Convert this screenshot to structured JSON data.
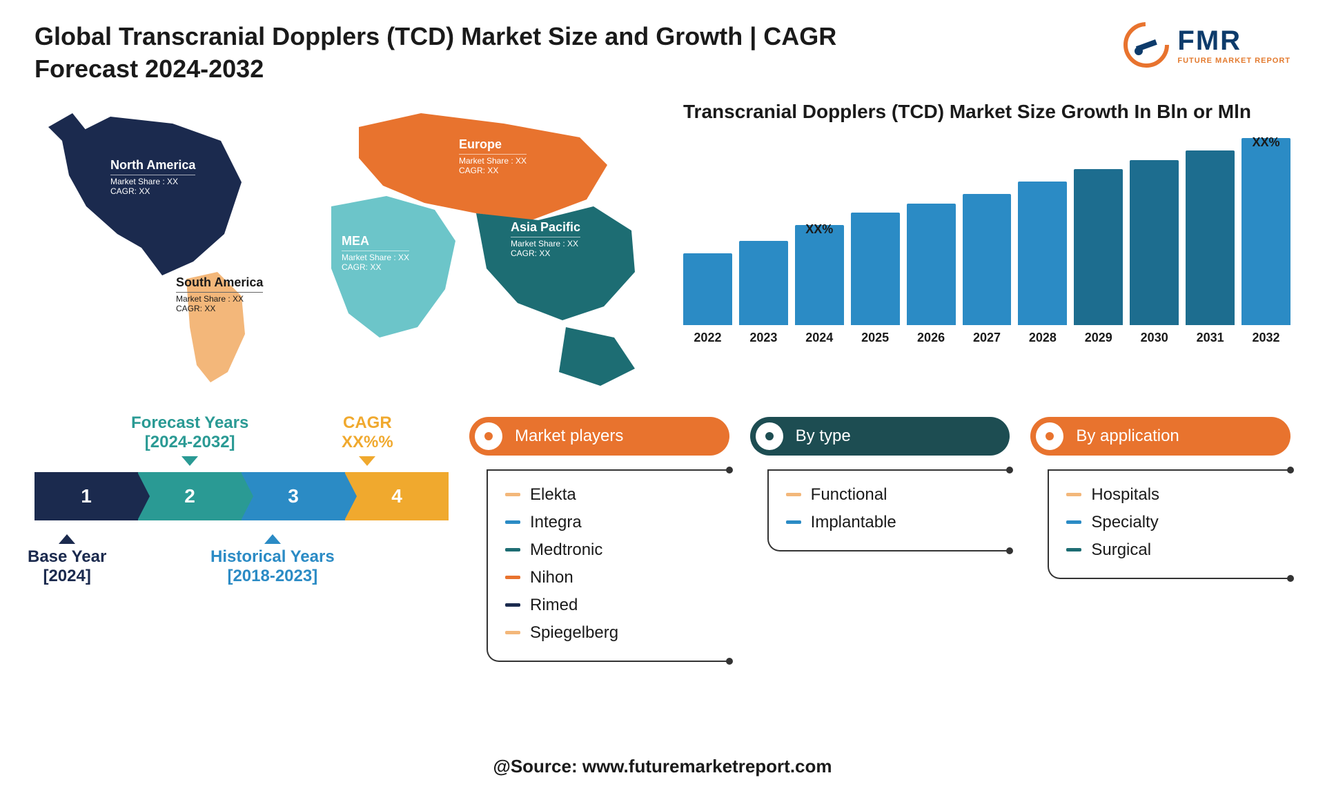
{
  "title": "Global Transcranial Dopplers (TCD) Market Size and Growth | CAGR Forecast 2024-2032",
  "logo": {
    "fmr": "FMR",
    "sub": "FUTURE MARKET REPORT"
  },
  "map": {
    "regions": [
      {
        "name": "North America",
        "share_label": "Market Share : XX",
        "cagr_label": "CAGR: XX",
        "color": "#1b2a4e"
      },
      {
        "name": "South America",
        "share_label": "Market Share : XX",
        "cagr_label": "CAGR: XX",
        "color": "#f3b77a"
      },
      {
        "name": "Europe",
        "share_label": "Market Share : XX",
        "cagr_label": "CAGR: XX",
        "color": "#e8732e"
      },
      {
        "name": "MEA",
        "share_label": "Market Share : XX",
        "cagr_label": "CAGR: XX",
        "color": "#6cc5c9"
      },
      {
        "name": "Asia Pacific",
        "share_label": "Market Share : XX",
        "cagr_label": "CAGR: XX",
        "color": "#1d6d73"
      }
    ]
  },
  "chart": {
    "title": "Transcranial Dopplers (TCD) Market Size Growth In Bln or Mln",
    "type": "bar",
    "bar_color": "#2b8bc5",
    "bar_color_alt": "#1d6d8f",
    "years": [
      "2022",
      "2023",
      "2024",
      "2025",
      "2026",
      "2027",
      "2028",
      "2029",
      "2030",
      "2031",
      "2032"
    ],
    "values": [
      115,
      135,
      160,
      180,
      195,
      210,
      230,
      250,
      265,
      280,
      300
    ],
    "ymax": 310,
    "annotations": [
      {
        "index": 2,
        "text": "XX%"
      },
      {
        "index": 10,
        "text": "XX%"
      }
    ],
    "label_fontsize": 18
  },
  "timeline": {
    "callouts": {
      "base": {
        "title": "Base Year",
        "sub": "[2024]",
        "color": "#1b2a4e"
      },
      "forecast": {
        "title": "Forecast Years",
        "sub": "[2024-2032]",
        "color": "#2a9a94"
      },
      "historical": {
        "title": "Historical Years",
        "sub": "[2018-2023]",
        "color": "#2b8bc5"
      },
      "cagr": {
        "title": "CAGR",
        "sub": "XX%%",
        "color": "#f0a92e"
      }
    },
    "segments": [
      {
        "num": "1",
        "color": "#1b2a4e"
      },
      {
        "num": "2",
        "color": "#2a9a94"
      },
      {
        "num": "3",
        "color": "#2b8bc5"
      },
      {
        "num": "4",
        "color": "#f0a92e"
      }
    ]
  },
  "categories": [
    {
      "label": "Market players",
      "pill_color": "#e8732e",
      "items": [
        {
          "text": "Elekta",
          "tick": "#f3b77a"
        },
        {
          "text": "Integra",
          "tick": "#2b8bc5"
        },
        {
          "text": "Medtronic",
          "tick": "#1d6d73"
        },
        {
          "text": "Nihon",
          "tick": "#e8732e"
        },
        {
          "text": "Rimed",
          "tick": "#1b2a4e"
        },
        {
          "text": "Spiegelberg",
          "tick": "#f3b77a"
        }
      ]
    },
    {
      "label": "By type",
      "pill_color": "#1d4d52",
      "items": [
        {
          "text": "Functional",
          "tick": "#f3b77a"
        },
        {
          "text": "Implantable",
          "tick": "#2b8bc5"
        }
      ]
    },
    {
      "label": "By application",
      "pill_color": "#e8732e",
      "items": [
        {
          "text": "Hospitals",
          "tick": "#f3b77a"
        },
        {
          "text": "Specialty",
          "tick": "#2b8bc5"
        },
        {
          "text": "Surgical",
          "tick": "#1d6d73"
        }
      ]
    }
  ],
  "source": "@Source: www.futuremarketreport.com"
}
